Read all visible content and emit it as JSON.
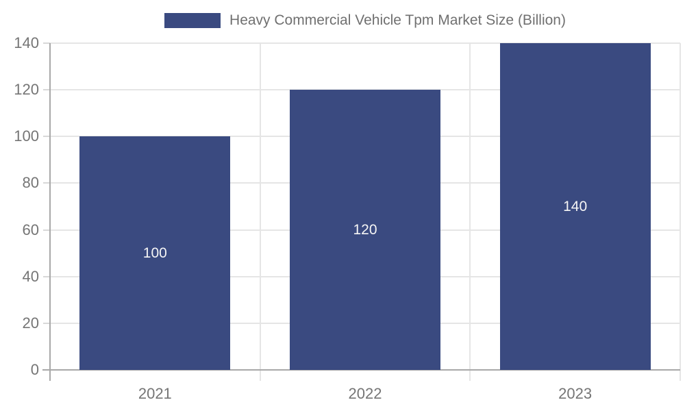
{
  "chart_data": {
    "type": "bar",
    "title": "",
    "categories": [
      "2021",
      "2022",
      "2023"
    ],
    "series": [
      {
        "name": "Heavy Commercial Vehicle Tpm Market Size (Billion)",
        "values": [
          100,
          120,
          140
        ]
      }
    ],
    "bar_value_labels": [
      "100",
      "120",
      "140"
    ],
    "xlabel": "",
    "ylabel": "",
    "ylim": [
      0,
      140
    ],
    "yticks": [
      0,
      20,
      40,
      60,
      80,
      100,
      120,
      140
    ],
    "grid": true,
    "legend_position": "top-center",
    "colors": {
      "bar": "#3a4a80",
      "grid": "#e5e5e5",
      "axis": "#a8a8a8",
      "tick": "#d8d8d8",
      "tick_label": "#757575",
      "legend_label": "#707070",
      "bar_label": "#f5f5f5",
      "background": "#ffffff"
    }
  }
}
